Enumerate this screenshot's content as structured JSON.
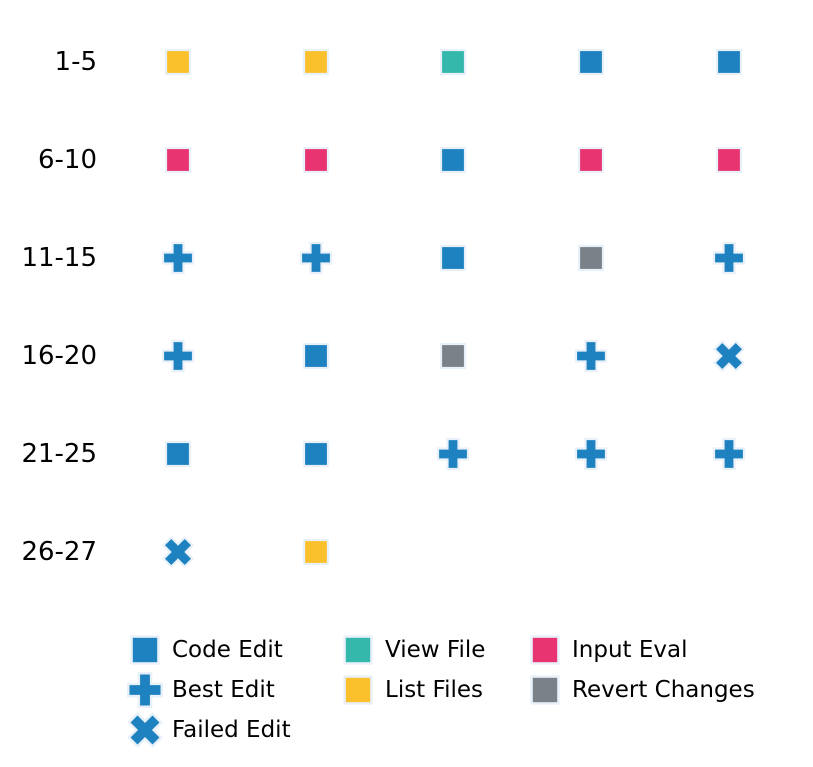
{
  "chart_data": {
    "type": "scatter",
    "variant": "categorical-marker-grid",
    "grid_off": true,
    "axes_off": true,
    "row_labels": [
      "1-5",
      "6-10",
      "11-15",
      "16-20",
      "21-25",
      "26-27"
    ],
    "num_columns": 5,
    "grid": [
      [
        "list_files",
        "list_files",
        "view_file",
        "code_edit",
        "code_edit"
      ],
      [
        "input_eval",
        "input_eval",
        "code_edit",
        "input_eval",
        "input_eval"
      ],
      [
        "best_edit",
        "best_edit",
        "code_edit",
        "revert_changes",
        "best_edit"
      ],
      [
        "best_edit",
        "code_edit",
        "revert_changes",
        "best_edit",
        "failed_edit"
      ],
      [
        "code_edit",
        "code_edit",
        "best_edit",
        "best_edit",
        "best_edit"
      ],
      [
        "failed_edit",
        "list_files",
        null,
        null,
        null
      ]
    ],
    "legend": {
      "position": "lower-center",
      "columns": 3,
      "column_layout": [
        [
          0,
          1,
          2
        ],
        [
          3,
          4
        ],
        [
          5,
          6
        ]
      ],
      "entries": [
        {
          "key": "code_edit",
          "label": "Code Edit",
          "marker": "square",
          "color": "#1E82C0"
        },
        {
          "key": "best_edit",
          "label": "Best Edit",
          "marker": "plus",
          "color": "#1E82C0"
        },
        {
          "key": "failed_edit",
          "label": "Failed Edit",
          "marker": "x",
          "color": "#1E82C0"
        },
        {
          "key": "view_file",
          "label": "View File",
          "marker": "square",
          "color": "#35B8AC"
        },
        {
          "key": "list_files",
          "label": "List Files",
          "marker": "square",
          "color": "#FBC12D"
        },
        {
          "key": "input_eval",
          "label": "Input Eval",
          "marker": "square",
          "color": "#E83470"
        },
        {
          "key": "revert_changes",
          "label": "Revert Changes",
          "marker": "square",
          "color": "#7B8189"
        }
      ]
    }
  }
}
